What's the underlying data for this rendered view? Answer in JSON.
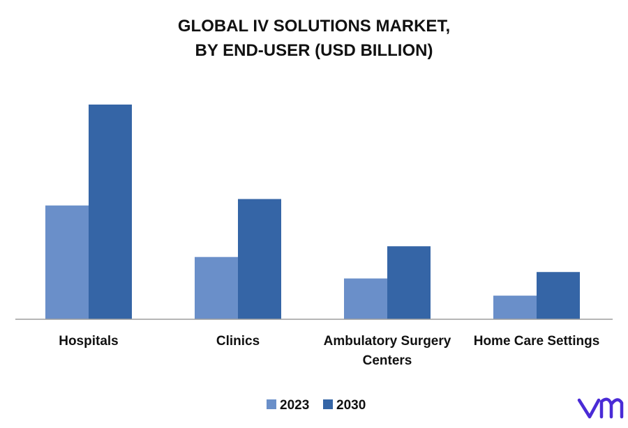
{
  "chart_data": {
    "type": "bar",
    "title": [
      "GLOBAL IV SOLUTIONS MARKET,",
      "BY END-USER (USD BILLION)"
    ],
    "categories": [
      [
        "Hospitals"
      ],
      [
        "Clinics"
      ],
      [
        "Ambulatory Surgery",
        "Centers"
      ],
      [
        "Home Care Settings"
      ]
    ],
    "series": [
      {
        "name": "2023",
        "color": "#6a8fc9",
        "values": [
          5.3,
          2.9,
          1.9,
          1.1
        ]
      },
      {
        "name": "2030",
        "color": "#3565a6",
        "values": [
          10.0,
          5.6,
          3.4,
          2.2
        ]
      }
    ],
    "ylim": [
      0,
      10.6
    ],
    "legend_position": "bottom-center",
    "grid": false
  },
  "branding": {
    "logo_icon": "vmr-logo-icon",
    "logo_color": "#4a2bd6"
  }
}
